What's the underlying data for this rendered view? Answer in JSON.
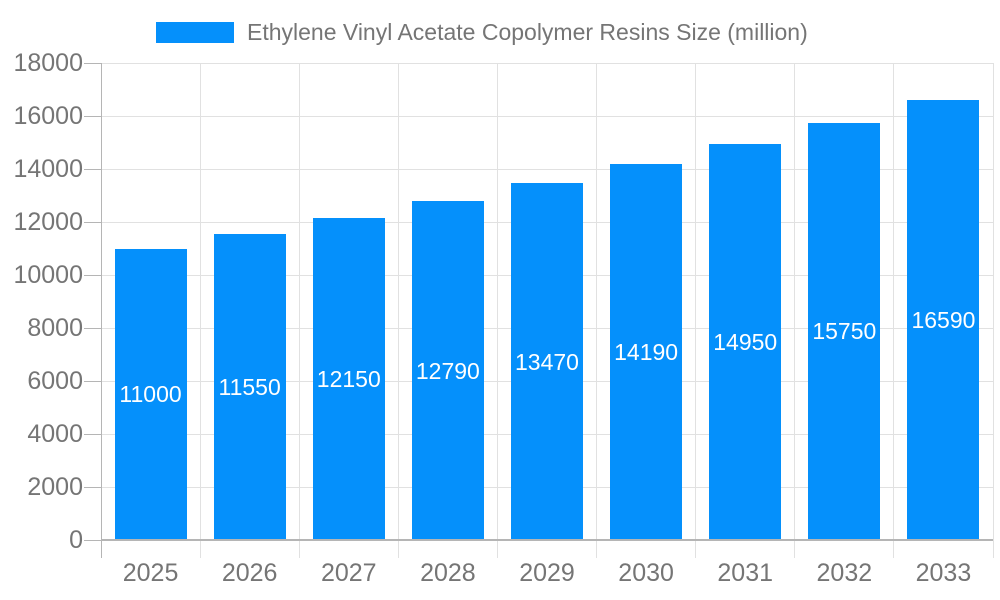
{
  "chart_data": {
    "type": "bar",
    "title": "",
    "legend": "Ethylene Vinyl Acetate Copolymer Resins Size (million)",
    "legend_position": "top",
    "categories": [
      "2025",
      "2026",
      "2027",
      "2028",
      "2029",
      "2030",
      "2031",
      "2032",
      "2033"
    ],
    "values": [
      11000,
      11550,
      12150,
      12790,
      13470,
      14190,
      14950,
      15750,
      16590
    ],
    "data_labels": [
      "11000",
      "11550",
      "12150",
      "12790",
      "13470",
      "14190",
      "14950",
      "15750",
      "16590"
    ],
    "xlabel": "",
    "ylabel": "",
    "ylim": [
      0,
      18000
    ],
    "ytick_step": 2000,
    "ytick_labels": [
      "0",
      "2000",
      "4000",
      "6000",
      "8000",
      "10000",
      "12000",
      "14000",
      "16000",
      "18000"
    ],
    "grid": "on",
    "colors": {
      "bar": "#0590fb",
      "bar_label_text": "#ffffff",
      "axis_text": "#757575",
      "legend_text": "#757575",
      "gridline": "#e1e1e1",
      "axis_line": "#b5b5b5",
      "background": "#ffffff"
    }
  }
}
